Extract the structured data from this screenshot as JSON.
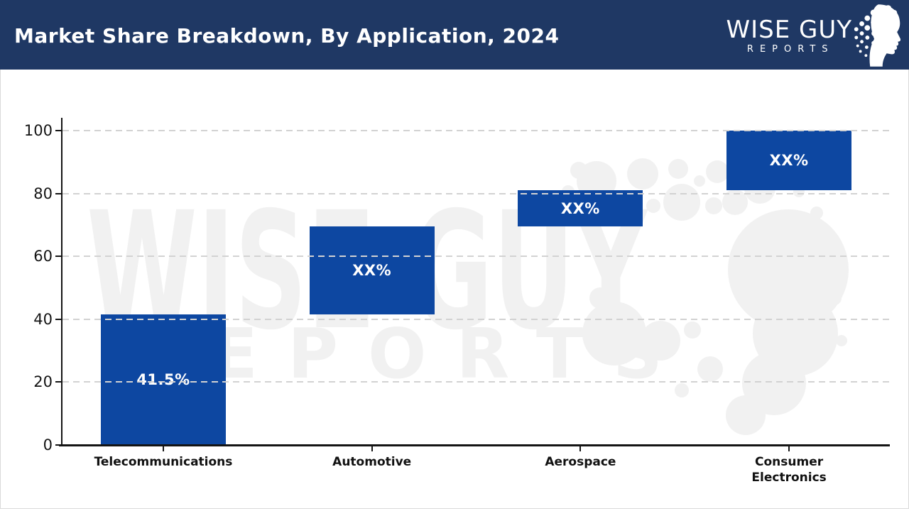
{
  "header": {
    "title": "Market Share Breakdown, By Application, 2024",
    "bg_color": "#1f3864",
    "logo": {
      "line1": "WISE GUY",
      "line2": "REPORTS"
    }
  },
  "watermark": {
    "line1": "WISE GUY",
    "line2": "REPORTS"
  },
  "chart_data": {
    "type": "bar",
    "subtype": "waterfall",
    "title": "Market Share Breakdown, By Application, 2024",
    "xlabel": "",
    "ylabel": "",
    "ylim": [
      0,
      104
    ],
    "yticks": [
      0,
      20,
      40,
      60,
      80,
      100
    ],
    "grid": "horizontal dashed, drawn over bars",
    "legend": "none",
    "bar_color": "#0d47a1",
    "value_label_color": "#ffffff",
    "categories": [
      "Telecommunications",
      "Automotive",
      "Aerospace",
      "Consumer Electronics"
    ],
    "category_label_lines": [
      [
        "Telecommunications"
      ],
      [
        "Automotive"
      ],
      [
        "Aerospace"
      ],
      [
        "Consumer",
        "Electronics"
      ]
    ],
    "segments": [
      {
        "category": "Telecommunications",
        "start": 0,
        "end": 41.5,
        "value": 41.5,
        "label": "41.5%"
      },
      {
        "category": "Automotive",
        "start": 41.5,
        "end": 69.5,
        "value": 28,
        "label": "XX%"
      },
      {
        "category": "Aerospace",
        "start": 69.5,
        "end": 81,
        "value": 11.5,
        "label": "XX%"
      },
      {
        "category": "Consumer Electronics",
        "start": 81,
        "end": 100,
        "value": 19,
        "label": "XX%"
      }
    ]
  }
}
